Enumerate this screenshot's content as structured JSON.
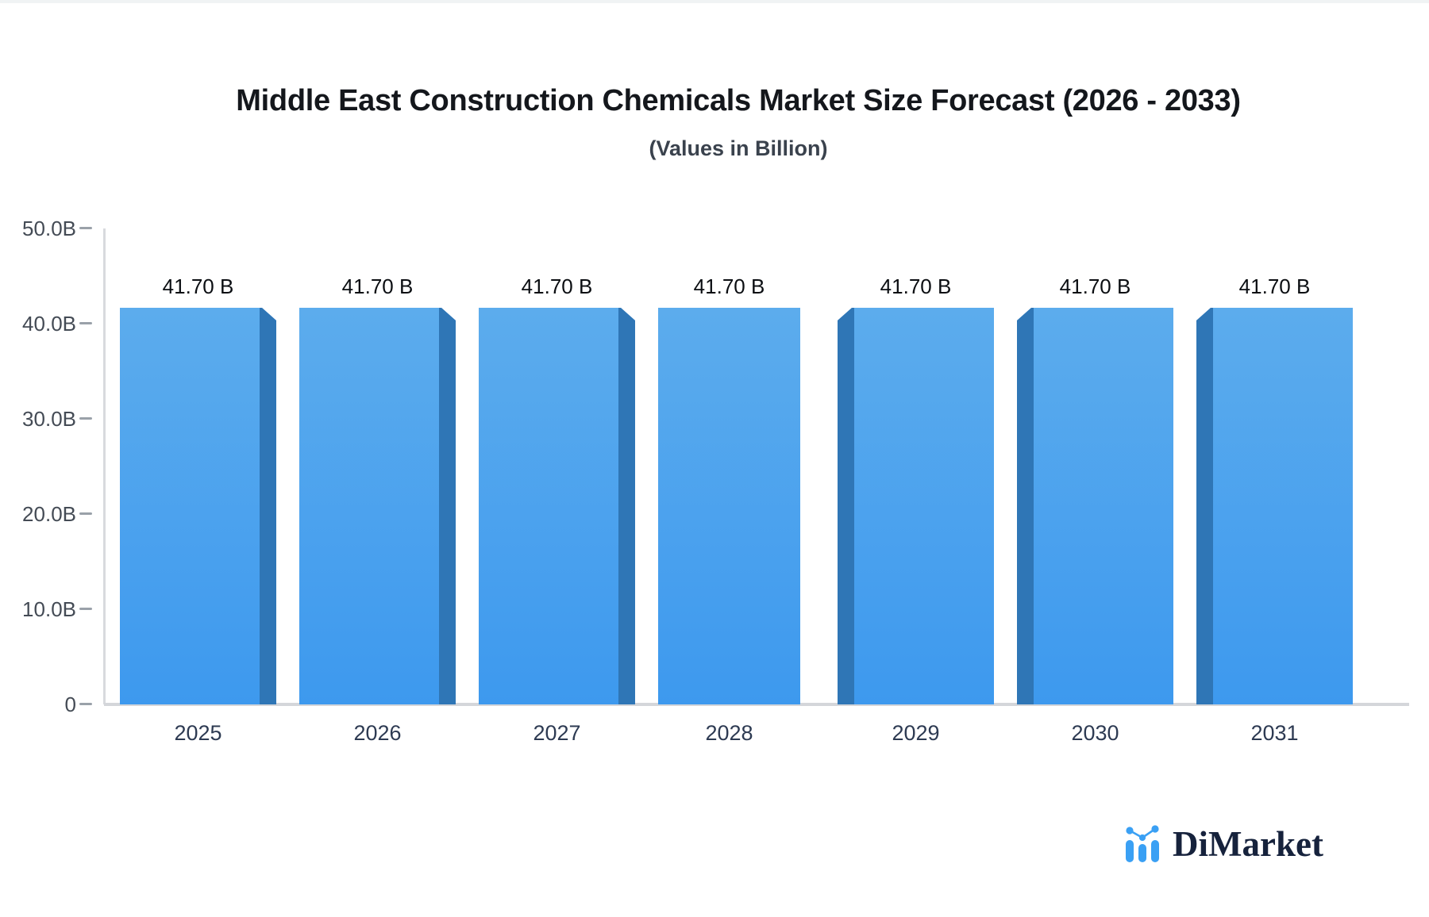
{
  "header": {
    "title": "Middle East Construction Chemicals Market Size Forecast (2026 - 2033)",
    "subtitle": "(Values in Billion)"
  },
  "chart_data": {
    "type": "bar",
    "title": "Middle East Construction Chemicals Market Size Forecast (2026 - 2033)",
    "subtitle": "(Values in Billion)",
    "categories": [
      "2025",
      "2026",
      "2027",
      "2028",
      "2029",
      "2030",
      "2031"
    ],
    "values": [
      41.7,
      41.7,
      41.7,
      41.7,
      41.7,
      41.7,
      41.7
    ],
    "bar_labels": [
      "41.70 B",
      "41.70 B",
      "41.70 B",
      "41.70 B",
      "41.70 B",
      "41.70 B",
      "41.70 B"
    ],
    "xlabel": "",
    "ylabel": "",
    "ylim": [
      0,
      50
    ],
    "y_ticks": [
      {
        "value": 50,
        "label": "50.0B"
      },
      {
        "value": 40,
        "label": "40.0B"
      },
      {
        "value": 30,
        "label": "30.0B"
      },
      {
        "value": 20,
        "label": "20.0B"
      },
      {
        "value": 10,
        "label": "10.0B"
      },
      {
        "value": 0,
        "label": "0"
      }
    ],
    "grid": false,
    "legend": false,
    "colors": {
      "bar_top": "#5caced",
      "bar_bottom": "#3d99ee",
      "bar_side": "#2f76b6"
    }
  },
  "branding": {
    "logo_text": "DiMarket",
    "logo_icon": "bar-line-chart-icon",
    "logo_text_color": "#16223c",
    "logo_icon_color": "#3aa0f4"
  }
}
